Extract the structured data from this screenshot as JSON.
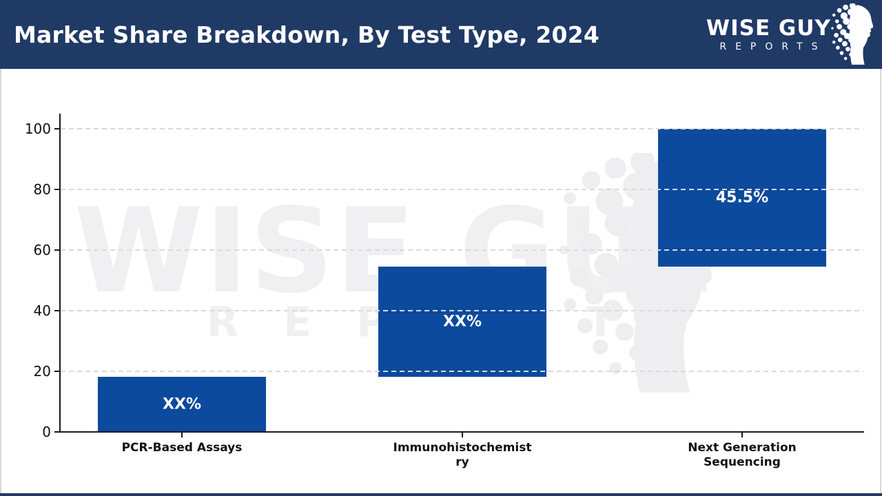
{
  "header": {
    "title": "Market Share Breakdown, By Test Type, 2024",
    "logo": {
      "brand_line1": "WISE GUY",
      "brand_line2": "REPORTS"
    }
  },
  "watermark": {
    "line1": "WISE GUY",
    "line2": "REPORTS"
  },
  "chart_data": {
    "type": "bar",
    "variant": "waterfall-stacked-segments",
    "title": "Market Share Breakdown, By Test Type, 2024",
    "categories": [
      "PCR-Based Assays",
      "Immunohistochemistry",
      "Next Generation Sequencing"
    ],
    "category_display_lines": [
      "PCR-Based Assays",
      "Immunohistochemist\nry",
      "Next Generation\nSequencing"
    ],
    "bars": [
      {
        "category": "PCR-Based Assays",
        "value_label": "XX%",
        "segment_start": 0,
        "segment_end": 18.2
      },
      {
        "category": "Immunohistochemistry",
        "value_label": "XX%",
        "segment_start": 18.2,
        "segment_end": 54.5
      },
      {
        "category": "Next Generation Sequencing",
        "value_label": "45.5%",
        "segment_start": 54.5,
        "segment_end": 100
      }
    ],
    "yticks": [
      0,
      20,
      40,
      60,
      80,
      100
    ],
    "ylim": [
      0,
      105
    ],
    "xlabel": "",
    "ylabel": "",
    "grid": "horizontal-dashed",
    "legend": "none",
    "bar_color": "#0c4a9e"
  },
  "colors": {
    "header_bg": "#203a66",
    "footer_bg": "#203a66",
    "bar": "#0c4a9e",
    "grid": "#dadada",
    "axis": "#1a1a1a",
    "watermark": "#f0f0f2"
  }
}
